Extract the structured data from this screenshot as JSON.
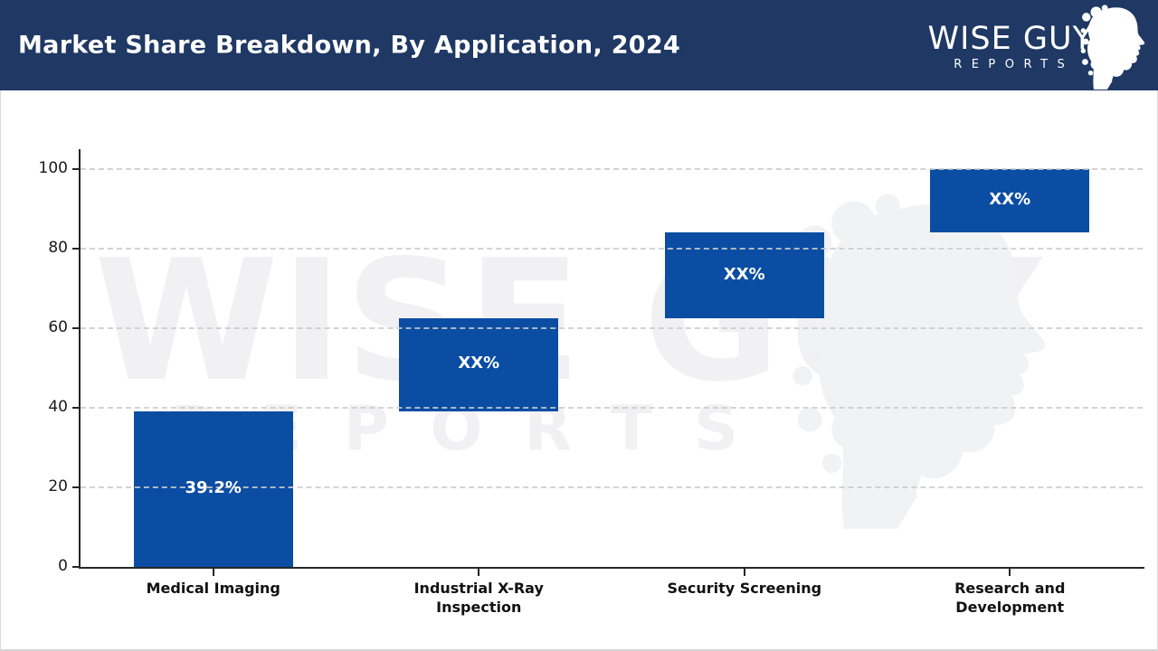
{
  "header": {
    "title": "Market Share Breakdown, By Application, 2024",
    "logo": {
      "line1": "WISE GUY",
      "line2": "REPORTS"
    }
  },
  "watermark": {
    "line1": "WISE GUY",
    "line2": "REPORTS"
  },
  "colors": {
    "header_bg": "#1f3864",
    "bar": "#0b4da2",
    "bar_label": "#ffffff",
    "watermark": "#f1f1f4",
    "axis": "#262626"
  },
  "chart_data": {
    "type": "bar",
    "subtype": "waterfall",
    "title": "Market Share Breakdown, By Application, 2024",
    "categories": [
      [
        "Medical Imaging"
      ],
      [
        "Industrial X-Ray",
        "Inspection"
      ],
      [
        "Security Screening"
      ],
      [
        "Research and",
        "Development"
      ]
    ],
    "segments": [
      {
        "name": "Medical Imaging",
        "start": 0,
        "end": 39.2,
        "label": "39.2%"
      },
      {
        "name": "Industrial X-Ray Inspection",
        "start": 39.2,
        "end": 62.5,
        "label": "XX%"
      },
      {
        "name": "Security Screening",
        "start": 62.5,
        "end": 84.0,
        "label": "XX%"
      },
      {
        "name": "Research and Development",
        "start": 84.0,
        "end": 100.0,
        "label": "XX%"
      }
    ],
    "ylim": [
      0,
      100
    ],
    "yticks": [
      0,
      20,
      40,
      60,
      80,
      100
    ],
    "xlabel": "",
    "ylabel": "",
    "grid": "horizontal-dashed",
    "legend": "none",
    "bar_color": "#0b4da2",
    "bar_label_color": "#ffffff"
  }
}
